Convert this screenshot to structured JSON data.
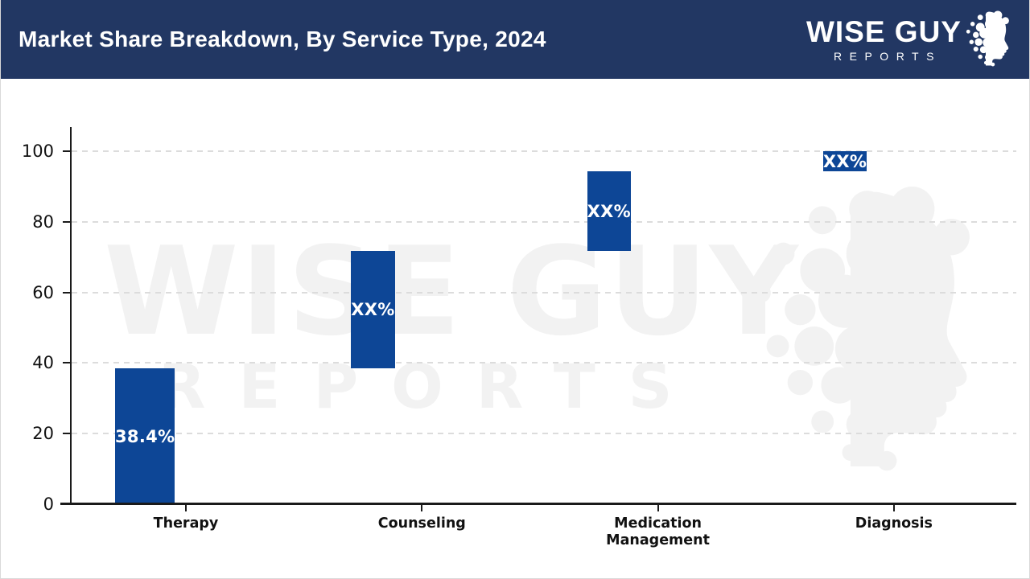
{
  "header": {
    "title": "Market Share Breakdown, By Service Type, 2024",
    "bg_color": "#223763",
    "logo": {
      "line1": "WISE GUY",
      "line2": "REPORTS"
    }
  },
  "watermark": {
    "line1": "WISE GUY",
    "line2": "REPORTS"
  },
  "chart_data": {
    "type": "bar",
    "variant": "waterfall-stacked-percentage",
    "title": "Market Share Breakdown, By Service Type, 2024",
    "categories": [
      "Therapy",
      "Counseling",
      "Medication Management",
      "Diagnosis"
    ],
    "segments": [
      {
        "category": "Therapy",
        "start": 0,
        "end": 38.4,
        "label": "38.4%"
      },
      {
        "category": "Counseling",
        "start": 38.4,
        "end": 71.8,
        "label": "XX%"
      },
      {
        "category": "Medication Management",
        "start": 71.8,
        "end": 94.2,
        "label": "XX%"
      },
      {
        "category": "Diagnosis",
        "start": 94.2,
        "end": 100,
        "label": "XX%"
      }
    ],
    "ylim": [
      0,
      100
    ],
    "yticks": [
      0,
      20,
      40,
      60,
      80,
      100
    ],
    "grid": "horizontal-dashed",
    "legend": "none",
    "bar_color": "#0d4696",
    "bar_label_color": "#ffffff",
    "grid_color": "#dcdcdc",
    "axis_color": "#1a1a1a"
  }
}
